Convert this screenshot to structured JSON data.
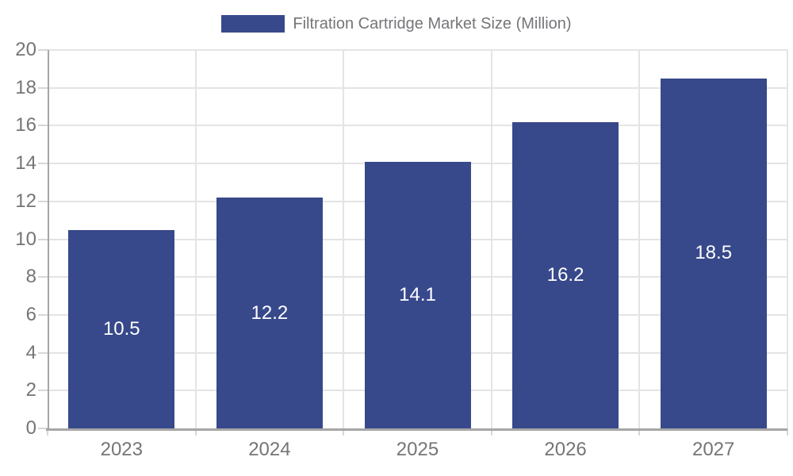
{
  "chart_data": {
    "type": "bar",
    "title": "Filtration Cartridge Market Size (Million)",
    "legend": [
      "Filtration Cartridge Market Size (Million)"
    ],
    "categories": [
      "2023",
      "2024",
      "2025",
      "2026",
      "2027"
    ],
    "values": [
      10.5,
      12.2,
      14.1,
      16.2,
      18.5
    ],
    "value_labels": [
      "10.5",
      "12.2",
      "14.1",
      "16.2",
      "18.5"
    ],
    "xlabel": "",
    "ylabel": "",
    "ylim": [
      0,
      20
    ],
    "ytick_step": 2,
    "ytick_labels": [
      "0",
      "2",
      "4",
      "6",
      "8",
      "10",
      "12",
      "14",
      "16",
      "18",
      "20"
    ],
    "grid": true,
    "legend_position": "top-center"
  },
  "colors": {
    "bar_fill": "#37498b",
    "bar_value_text": "#ffffff",
    "axis_text": "#757575",
    "legend_text": "#75757a",
    "gridline": "#e4e4e4",
    "tick_mark": "#d7d7d7",
    "axis_line": "#a6a6a6",
    "background": "#ffffff"
  }
}
